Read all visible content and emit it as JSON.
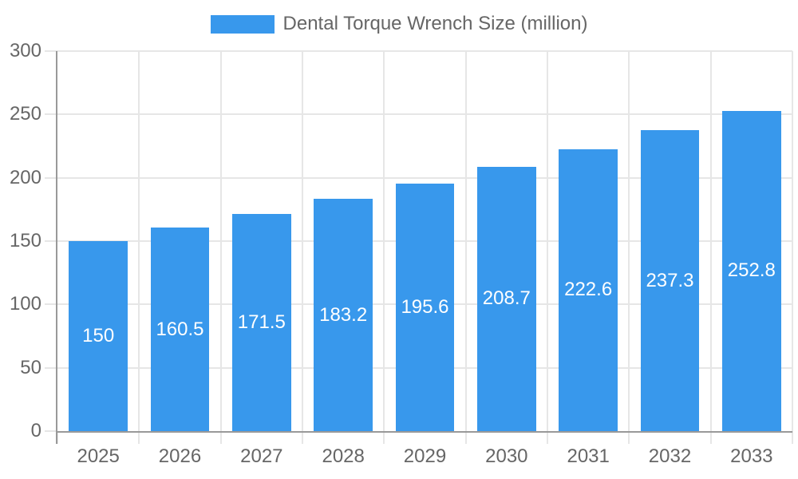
{
  "chart_data": {
    "type": "bar",
    "title": "Dental Torque Wrench Size (million)",
    "legend": [
      "Dental Torque Wrench Size (million)"
    ],
    "legend_position": "top",
    "categories": [
      "2025",
      "2026",
      "2027",
      "2028",
      "2029",
      "2030",
      "2031",
      "2032",
      "2033"
    ],
    "values": [
      150,
      160.5,
      171.5,
      183.2,
      195.6,
      208.7,
      222.6,
      237.3,
      252.8
    ],
    "xlabel": "",
    "ylabel": "",
    "ylim": [
      0,
      300
    ],
    "ytick_step": 50,
    "yticks": [
      0,
      50,
      100,
      150,
      200,
      250,
      300
    ],
    "grid": true,
    "value_label_position": "inside-center",
    "colors": {
      "bar": "#3898EC",
      "grid": "#E6E6E6",
      "axis": "#999999",
      "text": "#666666",
      "value_label": "#FFFFFF",
      "background": "#FFFFFF"
    }
  }
}
